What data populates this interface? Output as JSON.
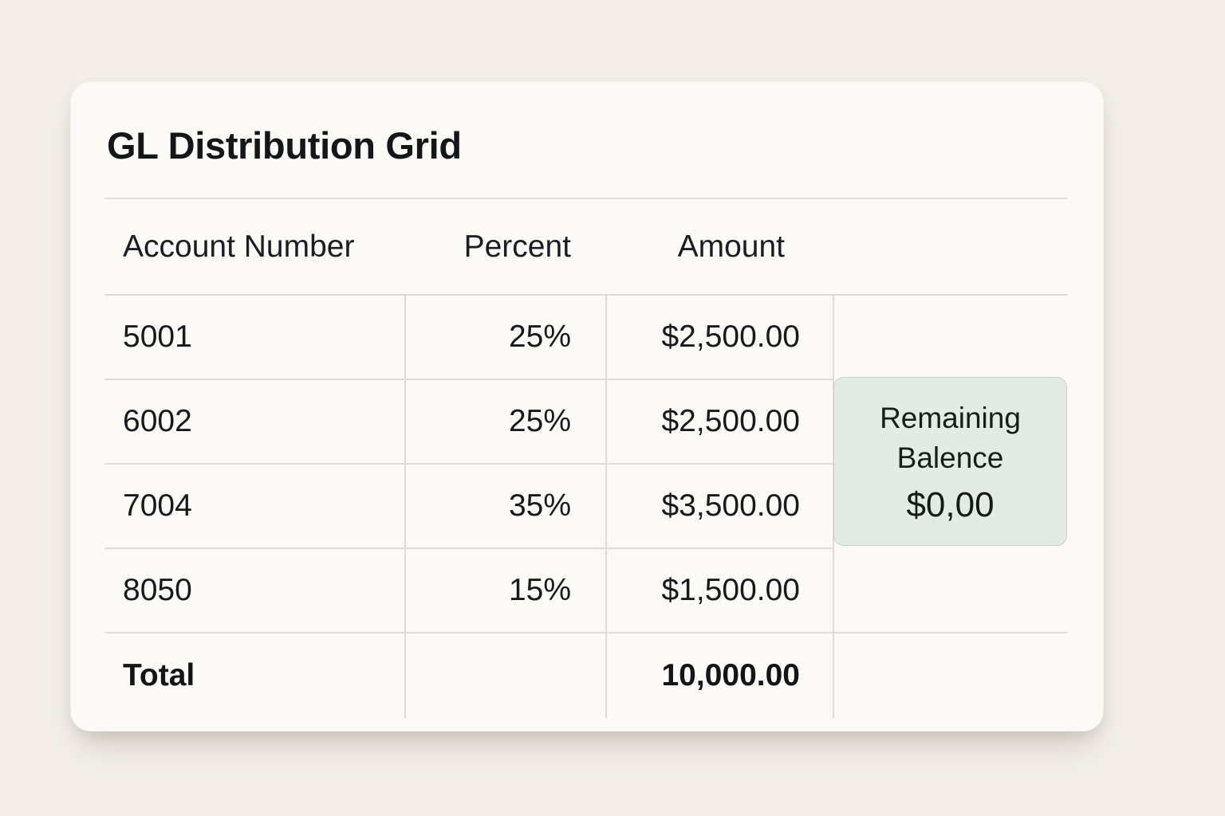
{
  "card": {
    "title": "GL Distribution Grid"
  },
  "table": {
    "headers": {
      "account": "Account Number",
      "percent": "Percent",
      "amount": "Amount"
    },
    "rows": [
      {
        "account": "5001",
        "percent": "25%",
        "amount": "$2,500.00"
      },
      {
        "account": "6002",
        "percent": "25%",
        "amount": "$2,500.00"
      },
      {
        "account": "7004",
        "percent": "35%",
        "amount": "$3,500.00"
      },
      {
        "account": "8050",
        "percent": "15%",
        "amount": "$1,500.00"
      }
    ],
    "total": {
      "label": "Total",
      "amount": "10,000.00"
    }
  },
  "remaining_balance_badge": {
    "label_line1": "Remaining",
    "label_line2": "Balence",
    "value": "$0,00"
  },
  "colors": {
    "page_background": "#f3eee8",
    "card_background": "#fbfaf6",
    "grid_line": "#dedbd4",
    "badge_background": "#e2ebe4",
    "text": "#17191c"
  }
}
